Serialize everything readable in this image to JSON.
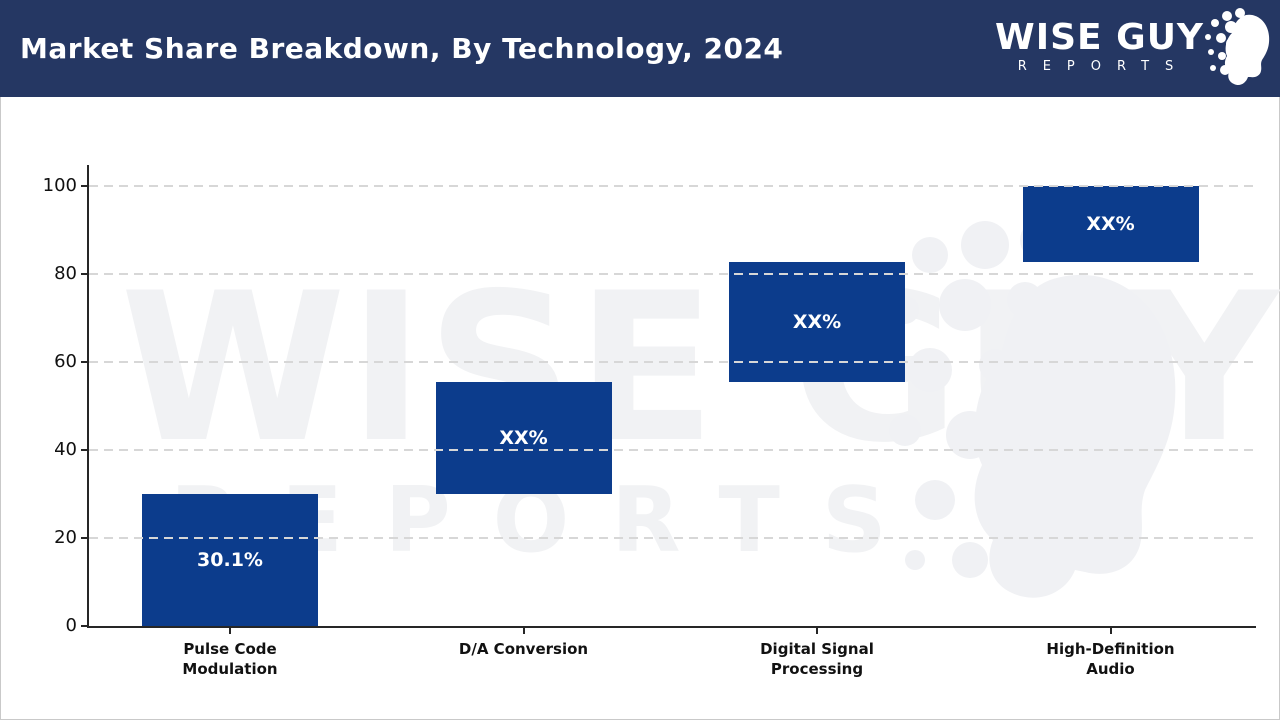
{
  "header": {
    "title": "Market Share Breakdown, By Technology, 2024",
    "logo": {
      "wordmark": "WISE GUY",
      "subtitle": "REPORTS"
    }
  },
  "watermark": {
    "word1": "WISE GUY",
    "word2": "REPORTS"
  },
  "colors": {
    "header_bg": "#253763",
    "bar": "#0c3c8c",
    "bar_label": "#ffffff",
    "gridline": "#d7d7d7",
    "axis": "#262626",
    "watermark": "#f1f2f4"
  },
  "chart_data": {
    "type": "bar",
    "subtype": "stepped-waterfall",
    "title": "Market Share Breakdown, By Technology, 2024",
    "categories": [
      "Pulse Code\nModulation",
      "D/A Conversion",
      "Digital Signal\nProcessing",
      "High-Definition\nAudio"
    ],
    "segments": [
      {
        "category": "Pulse Code Modulation",
        "start": 0,
        "end": 30.1,
        "label": "30.1%"
      },
      {
        "category": "D/A Conversion",
        "start": 30.1,
        "end": 55.4,
        "label": "XX%"
      },
      {
        "category": "Digital Signal Processing",
        "start": 55.4,
        "end": 82.7,
        "label": "XX%"
      },
      {
        "category": "High-Definition Audio",
        "start": 82.7,
        "end": 100,
        "label": "XX%"
      }
    ],
    "xlabel": "",
    "ylabel": "",
    "yticks": [
      0,
      20,
      40,
      60,
      80,
      100
    ],
    "ylim": [
      0,
      105
    ],
    "grid": true,
    "grid_style": "dashed",
    "legend": false,
    "bar_color": "#0c3c8c"
  }
}
